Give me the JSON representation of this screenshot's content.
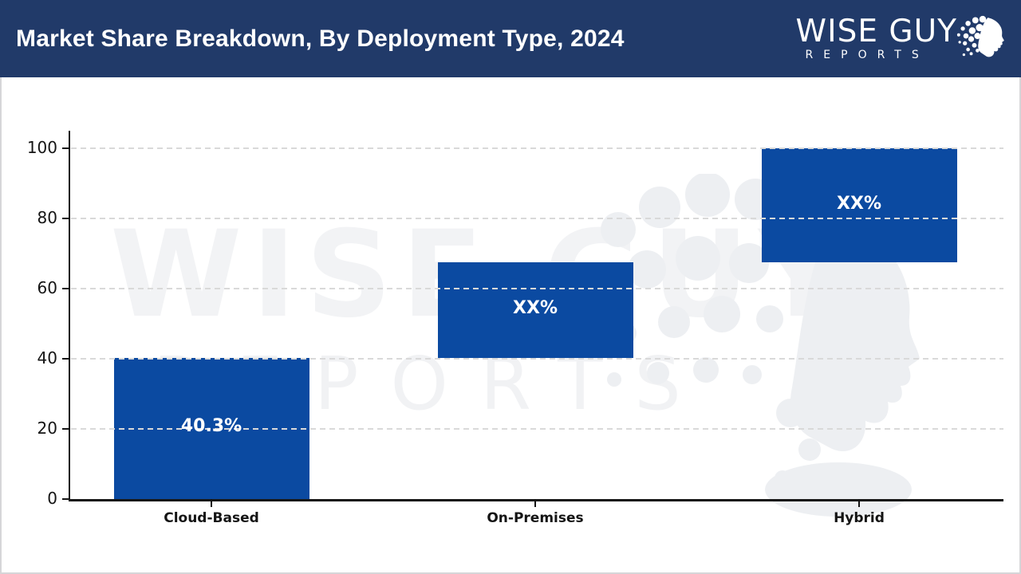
{
  "header": {
    "title": "Market Share Breakdown, By Deployment Type, 2024",
    "brand_line1": "WISE GUY",
    "brand_line2": "REPORTS",
    "bg_color": "#213a69"
  },
  "watermark": {
    "line1": "WISE GUY",
    "line2": "REPORTS"
  },
  "chart_data": {
    "type": "bar",
    "subtype": "waterfall-floating-bars",
    "title": "Market Share Breakdown, By Deployment Type, 2024",
    "categories": [
      "Cloud-Based",
      "On-Premises",
      "Hybrid"
    ],
    "series": [
      {
        "name": "Market share (%)",
        "values": [
          40.3,
          27.2,
          32.5
        ]
      }
    ],
    "segments": [
      {
        "category": "Cloud-Based",
        "start": 0,
        "end": 40.3,
        "label": "40.3%"
      },
      {
        "category": "On-Premises",
        "start": 40.3,
        "end": 67.5,
        "label": "XX%"
      },
      {
        "category": "Hybrid",
        "start": 67.5,
        "end": 100,
        "label": "XX%"
      }
    ],
    "xlabel": "",
    "ylabel": "",
    "ylim": [
      0,
      100
    ],
    "yticks": [
      0,
      20,
      40,
      60,
      80,
      100
    ],
    "grid": "horizontal dashed, drawn over bars",
    "legend": "none",
    "bar_color": "#0b4aa1",
    "bar_label_color": "#ffffff",
    "axis_color": "#141414",
    "gridline_color": "#d9d9d9"
  }
}
